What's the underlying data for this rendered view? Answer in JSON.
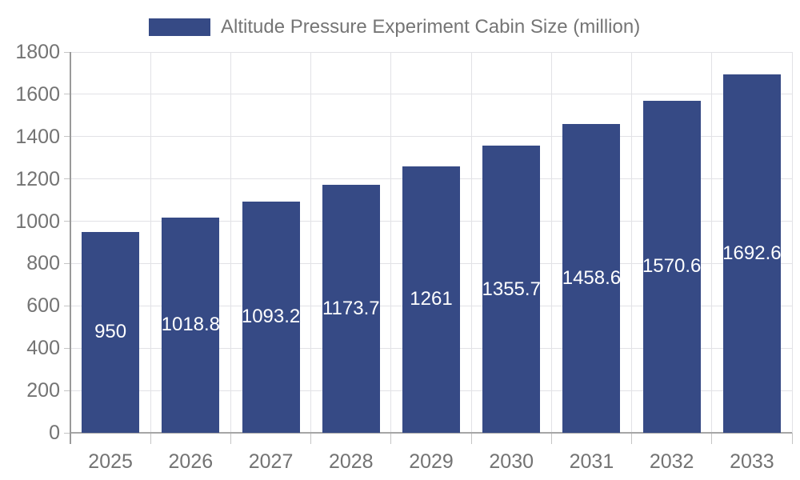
{
  "legend": {
    "label": "Altitude Pressure Experiment Cabin Size (million)"
  },
  "chart_data": {
    "type": "bar",
    "title": "Altitude Pressure Experiment Cabin Size (million)",
    "categories": [
      "2025",
      "2026",
      "2027",
      "2028",
      "2029",
      "2030",
      "2031",
      "2032",
      "2033"
    ],
    "values": [
      950,
      1018.8,
      1093.2,
      1173.7,
      1261,
      1355.7,
      1458.6,
      1570.6,
      1692.6
    ],
    "xlabel": "",
    "ylabel": "",
    "ylim": [
      0,
      1800
    ],
    "yticks": [
      0,
      200,
      400,
      600,
      800,
      1000,
      1200,
      1400,
      1600,
      1800
    ],
    "grid": true,
    "legend_position": "top",
    "colors": {
      "bar": "#364a85",
      "value_label": "#ffffff",
      "axis_text": "#737373",
      "legend_text": "#757575",
      "grid_line": "#e2e2e6",
      "axis_line": "#9a9a9a"
    }
  }
}
